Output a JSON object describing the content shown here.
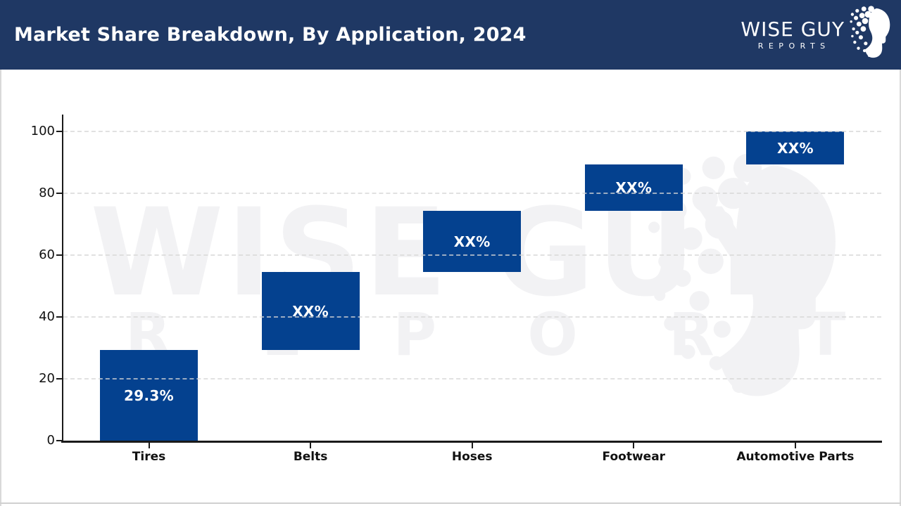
{
  "header": {
    "title": "Market Share Breakdown, By Application, 2024",
    "bg_color": "#1f3864"
  },
  "logo": {
    "line1": "WISE GUY",
    "line2": "REPORTS"
  },
  "watermark": {
    "line1": "WISE GUY",
    "line2": "R E P O R T S",
    "color": "#f2f2f4"
  },
  "chart_data": {
    "type": "bar",
    "subtype": "waterfall",
    "title": "Market Share Breakdown, By Application, 2024",
    "xlabel": "",
    "ylabel": "",
    "categories": [
      "Tires",
      "Belts",
      "Hoses",
      "Footwear",
      "Automotive Parts"
    ],
    "segments": [
      {
        "category": "Tires",
        "start": 0,
        "end": 29.3,
        "label": "29.3%"
      },
      {
        "category": "Belts",
        "start": 29.3,
        "end": 54.5,
        "label": "XX%"
      },
      {
        "category": "Hoses",
        "start": 54.5,
        "end": 74.3,
        "label": "XX%"
      },
      {
        "category": "Footwear",
        "start": 74.3,
        "end": 89.3,
        "label": "XX%"
      },
      {
        "category": "Automotive Parts",
        "start": 89.3,
        "end": 100,
        "label": "XX%"
      }
    ],
    "yticks": [
      0,
      20,
      40,
      60,
      80,
      100
    ],
    "ylim": [
      0,
      105
    ],
    "grid": "horizontal-dashed",
    "legend": "none",
    "bar_color": "#04418f",
    "bar_label_color": "#ffffff",
    "axis_color": "#1a1a1a",
    "grid_color": "#d6d6d6"
  }
}
